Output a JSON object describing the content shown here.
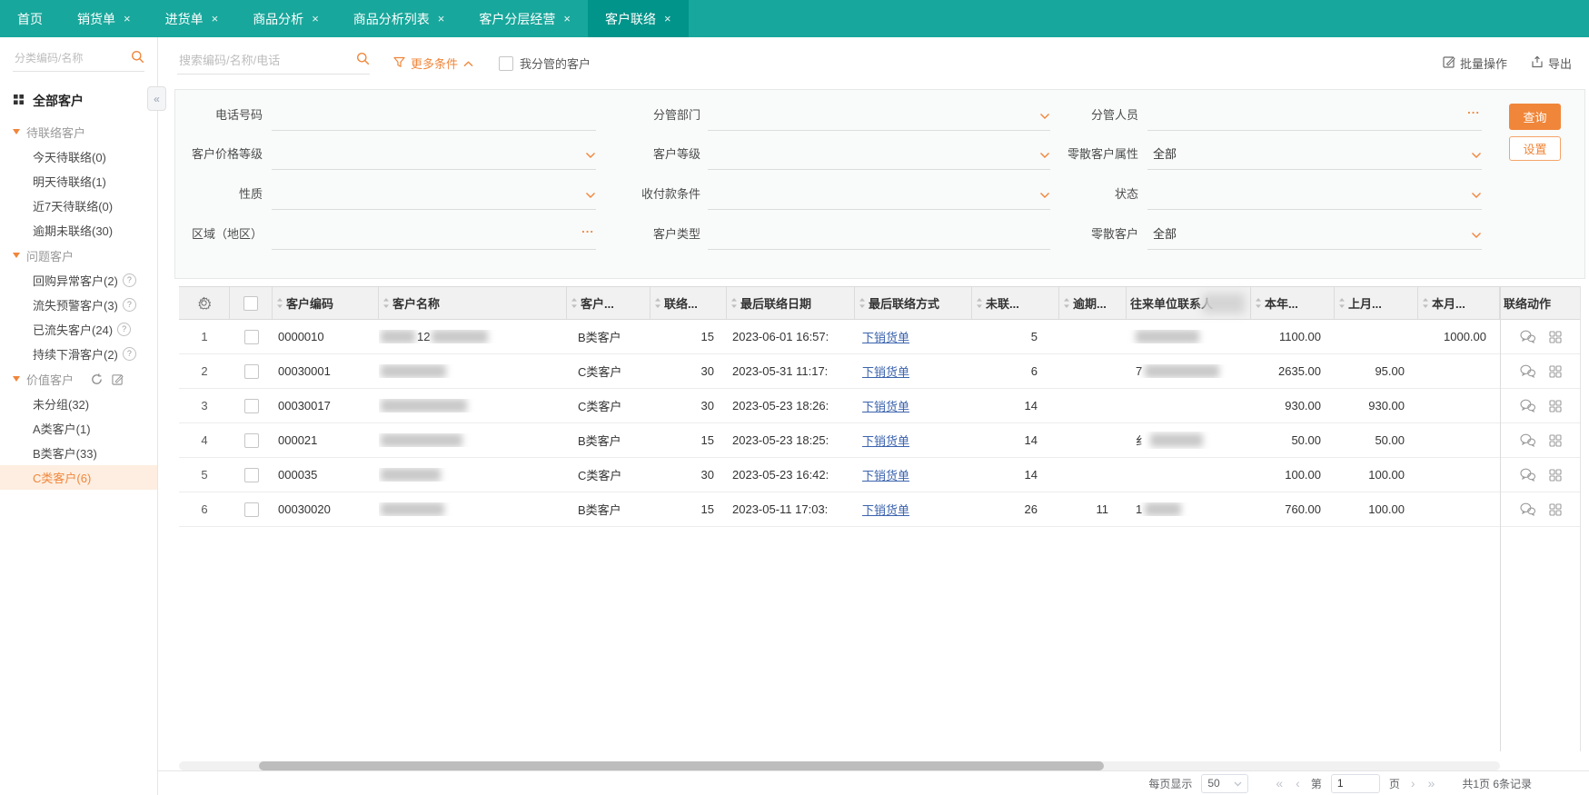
{
  "topbar": {
    "tabs": [
      {
        "label": "首页",
        "closable": false,
        "active": false
      },
      {
        "label": "销货单",
        "closable": true,
        "active": false
      },
      {
        "label": "进货单",
        "closable": true,
        "active": false
      },
      {
        "label": "商品分析",
        "closable": true,
        "active": false
      },
      {
        "label": "商品分析列表",
        "closable": true,
        "active": false
      },
      {
        "label": "客户分层经营",
        "closable": true,
        "active": false
      },
      {
        "label": "客户联络",
        "closable": true,
        "active": true
      }
    ]
  },
  "sidebar": {
    "search_placeholder": "分类编码/名称",
    "root_label": "全部客户",
    "groups": [
      {
        "label": "待联络客户",
        "items": [
          {
            "label": "今天待联络(0)"
          },
          {
            "label": "明天待联络(1)"
          },
          {
            "label": "近7天待联络(0)"
          },
          {
            "label": "逾期未联络(30)"
          }
        ]
      },
      {
        "label": "问题客户",
        "items": [
          {
            "label": "回购异常客户(2)",
            "help": true
          },
          {
            "label": "流失预警客户(3)",
            "help": true
          },
          {
            "label": "已流失客户(24)",
            "help": true
          },
          {
            "label": "持续下滑客户(2)",
            "help": true
          }
        ]
      },
      {
        "label": "价值客户",
        "tools": true,
        "items": [
          {
            "label": "未分组(32)"
          },
          {
            "label": "A类客户(1)"
          },
          {
            "label": "B类客户(33)"
          },
          {
            "label": "C类客户(6)",
            "selected": true
          }
        ]
      }
    ]
  },
  "toolbar": {
    "search_placeholder": "搜索编码/名称/电话",
    "more_filters_label": "更多条件",
    "my_customers_label": "我分管的客户",
    "batch_label": "批量操作",
    "export_label": "导出"
  },
  "filters": {
    "query_label": "查询",
    "settings_label": "设置",
    "fields": [
      {
        "row": 0,
        "col": 0,
        "label": "电话号码",
        "type": "input",
        "value": ""
      },
      {
        "row": 0,
        "col": 1,
        "label": "分管部门",
        "type": "select",
        "value": ""
      },
      {
        "row": 0,
        "col": 2,
        "label": "分管人员",
        "type": "ellipsis",
        "value": ""
      },
      {
        "row": 1,
        "col": 0,
        "label": "客户价格等级",
        "type": "select",
        "value": ""
      },
      {
        "row": 1,
        "col": 1,
        "label": "客户等级",
        "type": "select",
        "value": ""
      },
      {
        "row": 1,
        "col": 2,
        "label": "零散客户属性",
        "type": "select",
        "value": "全部"
      },
      {
        "row": 2,
        "col": 0,
        "label": "性质",
        "type": "select",
        "value": ""
      },
      {
        "row": 2,
        "col": 1,
        "label": "收付款条件",
        "type": "select",
        "value": ""
      },
      {
        "row": 2,
        "col": 2,
        "label": "状态",
        "type": "select",
        "value": ""
      },
      {
        "row": 3,
        "col": 0,
        "label": "区域（地区）",
        "type": "ellipsis",
        "value": ""
      },
      {
        "row": 3,
        "col": 1,
        "label": "客户类型",
        "type": "input",
        "value": ""
      },
      {
        "row": 3,
        "col": 2,
        "label": "零散客户",
        "type": "select",
        "value": "全部"
      }
    ]
  },
  "table": {
    "columns": [
      {
        "id": "gear",
        "label": "",
        "type": "gear",
        "sortable": false
      },
      {
        "id": "check",
        "label": "",
        "type": "checkbox",
        "sortable": false
      },
      {
        "id": "code",
        "label": "客户编码",
        "sortable": true
      },
      {
        "id": "name",
        "label": "客户名称",
        "sortable": true
      },
      {
        "id": "level",
        "label": "客户...",
        "sortable": true
      },
      {
        "id": "cycle",
        "label": "联络...",
        "sortable": true
      },
      {
        "id": "last_date",
        "label": "最后联络日期",
        "sortable": true
      },
      {
        "id": "last_method",
        "label": "最后联络方式",
        "sortable": true
      },
      {
        "id": "uncontacted",
        "label": "未联...",
        "sortable": true
      },
      {
        "id": "overdue",
        "label": "逾期...",
        "sortable": true
      },
      {
        "id": "contact",
        "label": "往来单位联系人",
        "sortable": false,
        "blurred": true
      },
      {
        "id": "year",
        "label": "本年...",
        "sortable": true
      },
      {
        "id": "last_month",
        "label": "上月...",
        "sortable": true
      },
      {
        "id": "this_month",
        "label": "本月...",
        "sortable": true
      },
      {
        "id": "actions",
        "label": "联络动作",
        "sortable": false
      }
    ],
    "rows": [
      {
        "idx": "1",
        "code": "0000010",
        "name_partial": "12",
        "name_pre_blur": 38,
        "name_blur": 62,
        "level": "B类客户",
        "cycle": "15",
        "last_date": "2023-06-01 16:57:",
        "last_method": "下销货单",
        "uncontacted": "5",
        "overdue": "",
        "contact_partial": "",
        "contact_blur": 70,
        "year": "1100.00",
        "last_month": "",
        "this_month": "1000.00"
      },
      {
        "idx": "2",
        "code": "00030001",
        "name_partial": "",
        "name_pre_blur": 0,
        "name_blur": 72,
        "level": "C类客户",
        "cycle": "30",
        "last_date": "2023-05-31 11:17:",
        "last_method": "下销货单",
        "uncontacted": "6",
        "overdue": "",
        "contact_partial": "7",
        "contact_blur": 82,
        "year": "2635.00",
        "last_month": "95.00",
        "this_month": ""
      },
      {
        "idx": "3",
        "code": "00030017",
        "name_partial": "",
        "name_pre_blur": 0,
        "name_blur": 95,
        "level": "C类客户",
        "cycle": "30",
        "last_date": "2023-05-23 18:26:",
        "last_method": "下销货单",
        "uncontacted": "14",
        "overdue": "",
        "contact_partial": "",
        "contact_blur": 0,
        "year": "930.00",
        "last_month": "930.00",
        "this_month": ""
      },
      {
        "idx": "4",
        "code": "000021",
        "name_partial": "",
        "name_pre_blur": 0,
        "name_blur": 90,
        "level": "B类客户",
        "cycle": "15",
        "last_date": "2023-05-23 18:25:",
        "last_method": "下销货单",
        "uncontacted": "14",
        "overdue": "",
        "contact_partial": "纟",
        "contact_blur": 58,
        "year": "50.00",
        "last_month": "50.00",
        "this_month": ""
      },
      {
        "idx": "5",
        "code": "000035",
        "name_partial": "",
        "name_pre_blur": 0,
        "name_blur": 66,
        "level": "C类客户",
        "cycle": "30",
        "last_date": "2023-05-23 16:42:",
        "last_method": "下销货单",
        "uncontacted": "14",
        "overdue": "",
        "contact_partial": "",
        "contact_blur": 0,
        "year": "100.00",
        "last_month": "100.00",
        "this_month": ""
      },
      {
        "idx": "6",
        "code": "00030020",
        "name_partial": "",
        "name_pre_blur": 0,
        "name_blur": 70,
        "level": "B类客户",
        "cycle": "15",
        "last_date": "2023-05-11 17:03:",
        "last_method": "下销货单",
        "uncontacted": "26",
        "overdue": "11",
        "contact_partial": "1",
        "contact_blur": 40,
        "year": "760.00",
        "last_month": "100.00",
        "this_month": ""
      }
    ]
  },
  "pagination": {
    "per_page_label": "每页显示",
    "per_page_value": "50",
    "page_prefix": "第",
    "page_value": "1",
    "page_suffix": "页",
    "total_label": "共1页 6条记录"
  },
  "colors": {
    "accent_teal": "#18a79c",
    "active_tab": "#00948a",
    "accent_orange": "#f0863a",
    "link_blue": "#3b63ad",
    "selected_bg": "#fdeee1"
  }
}
